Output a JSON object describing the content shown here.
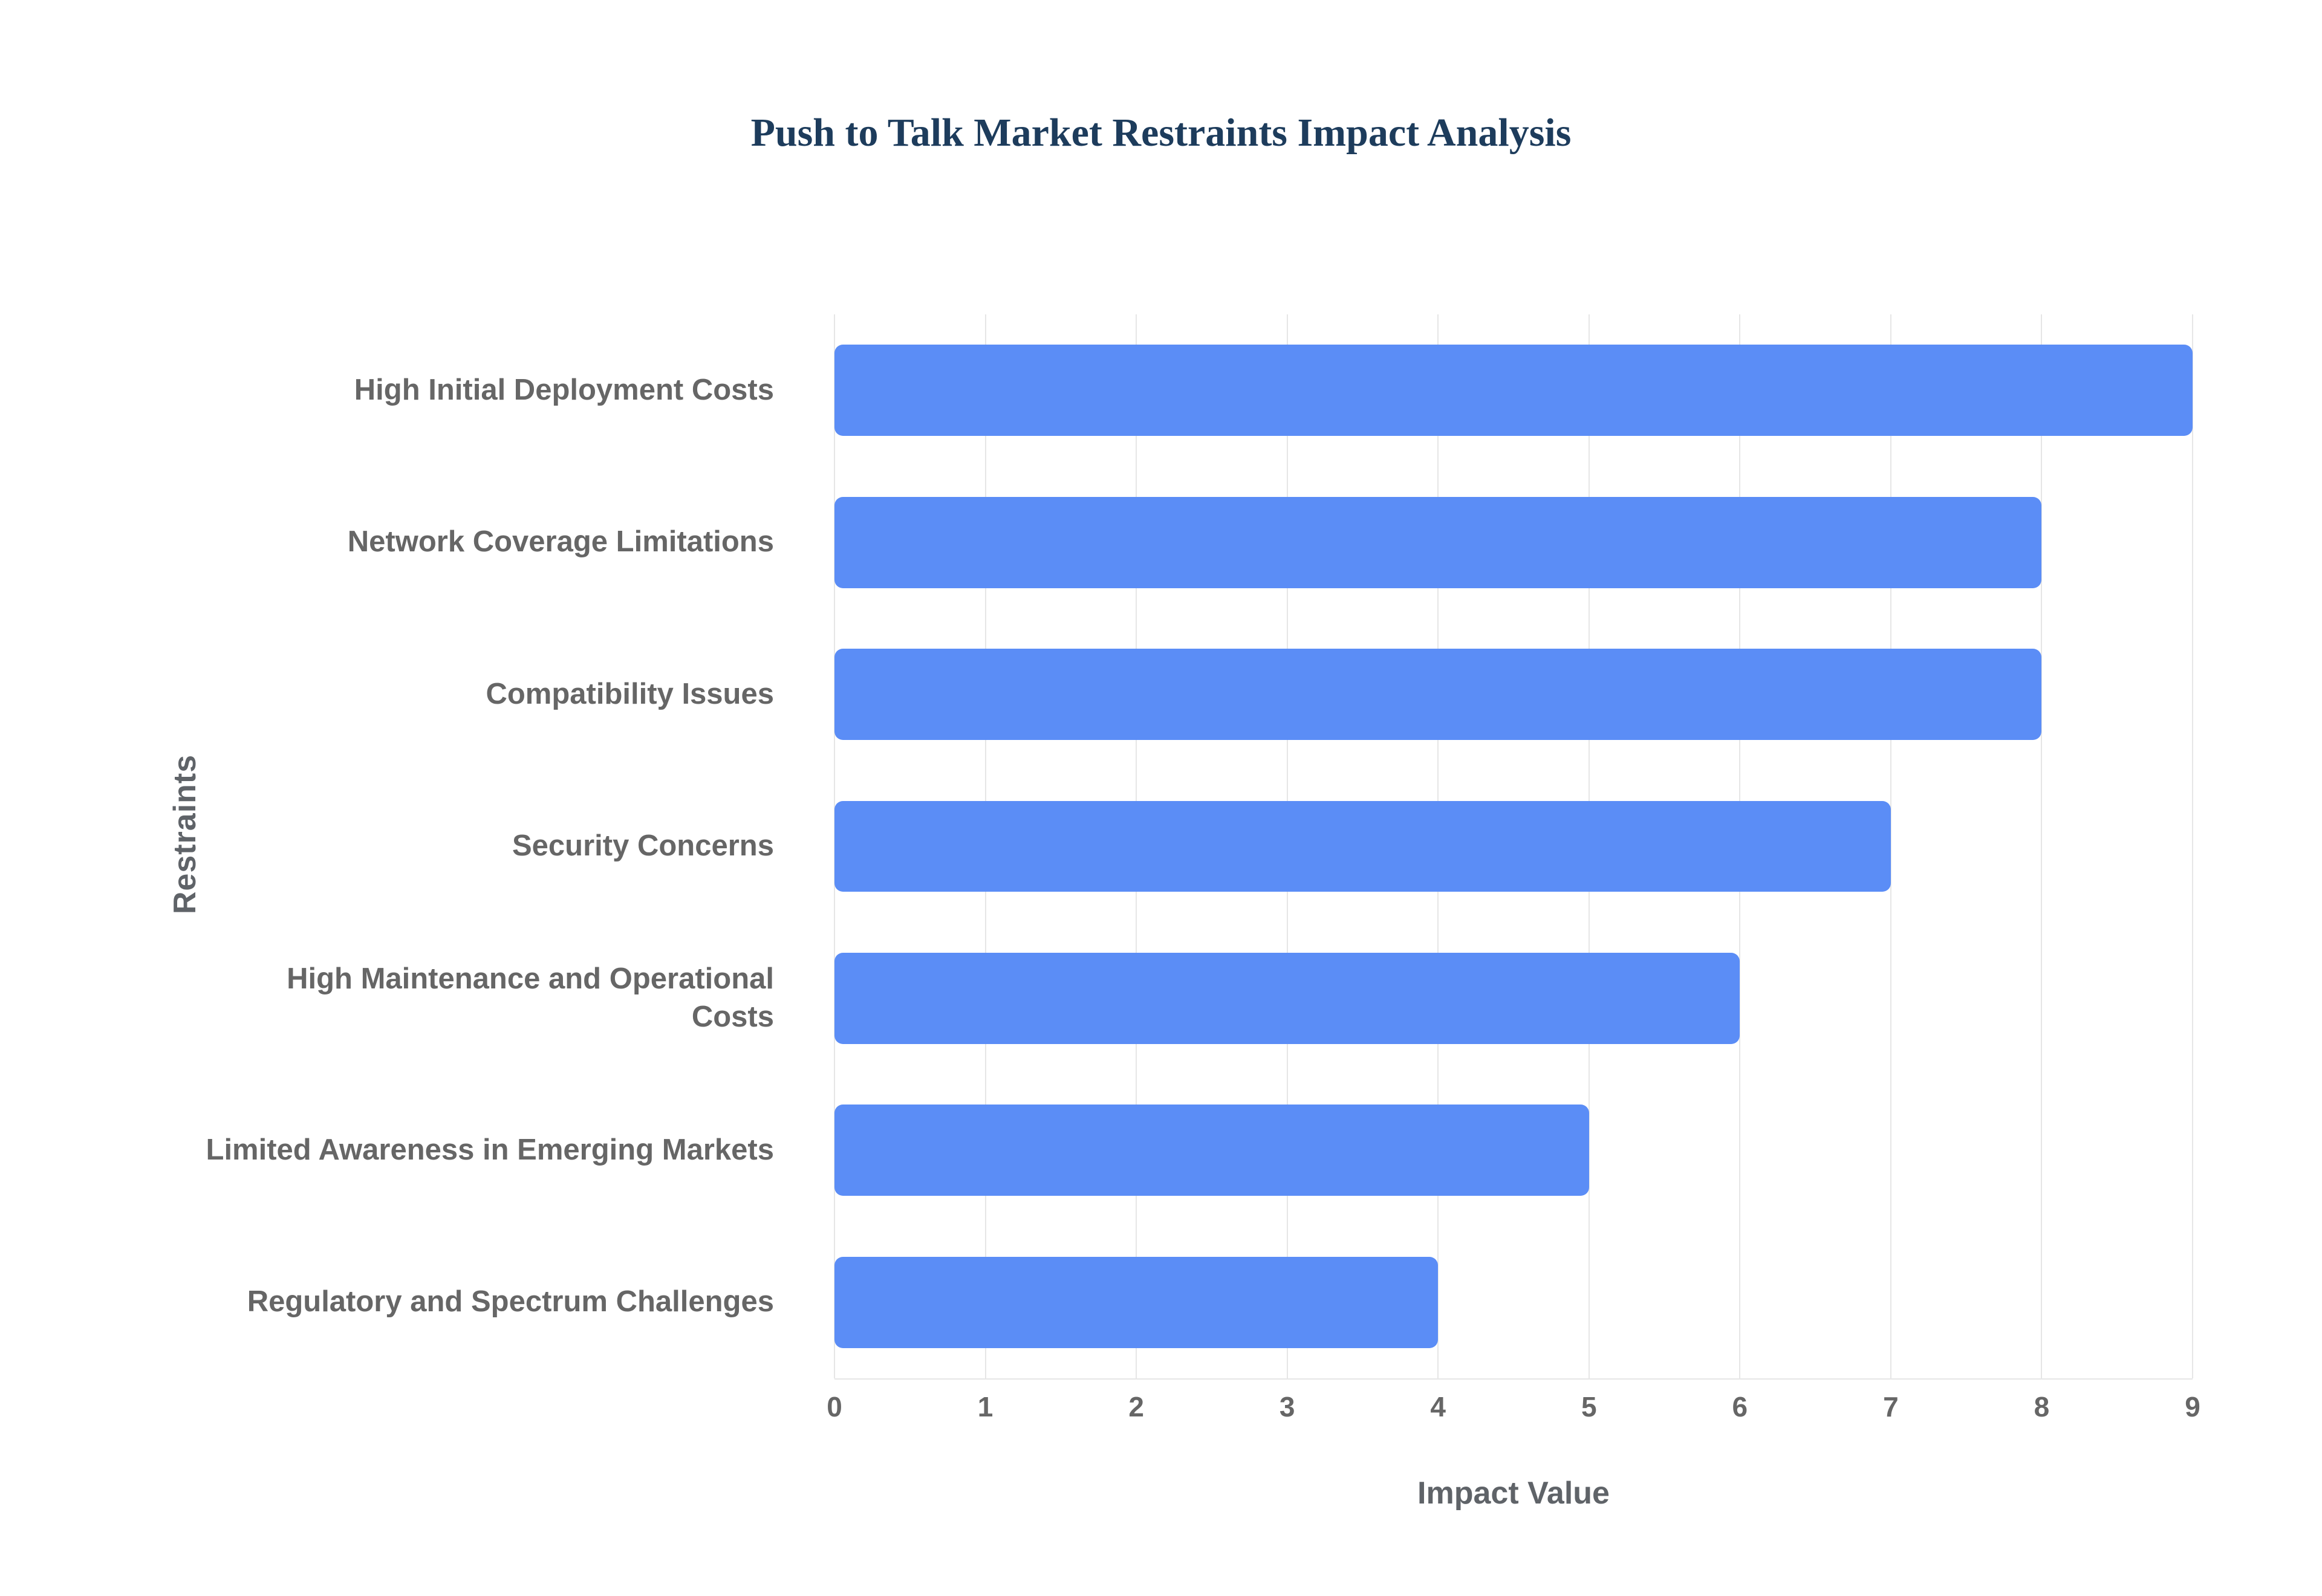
{
  "chart_data": {
    "type": "bar",
    "orientation": "horizontal",
    "title": "Push to Talk Market Restraints Impact Analysis",
    "xlabel": "Impact Value",
    "ylabel": "Restraints",
    "categories": [
      "High Initial Deployment Costs",
      "Network Coverage Limitations",
      "Compatibility Issues",
      "Security Concerns",
      "High Maintenance and Operational Costs",
      "Limited Awareness in Emerging Markets",
      "Regulatory and Spectrum Challenges"
    ],
    "values": [
      9,
      8,
      8,
      7,
      6,
      5,
      4
    ],
    "xlim": [
      0,
      9
    ],
    "xticks": [
      0,
      1,
      2,
      3,
      4,
      5,
      6,
      7,
      8,
      9
    ],
    "grid": true,
    "legend": false,
    "colors": {
      "bar": "#5b8df6",
      "title": "#1d3c5c",
      "category_label": "#666666",
      "tick_label": "#666666",
      "axis_title": "#5f6368",
      "gridline": "#e6e6e6",
      "background": "#ffffff"
    }
  }
}
